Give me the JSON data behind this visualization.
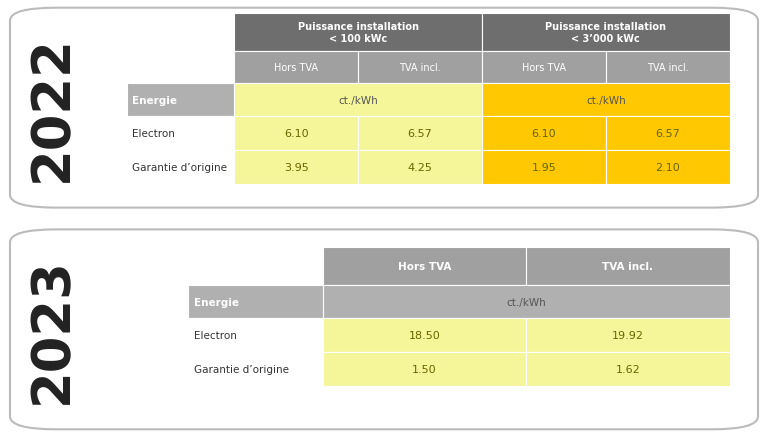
{
  "table2022": {
    "title_year": "2022",
    "col_headers_top": [
      "Puissance installation\n< 100 kWc",
      "Puissance installation\n< 3’000 kWc"
    ],
    "col_headers_sub": [
      "Hors TVA",
      "TVA incl.",
      "Hors TVA",
      "TVA incl."
    ],
    "energie_label_left": "ct./kWh",
    "energie_label_right": "ct./kWh",
    "data": [
      [
        "6.10",
        "6.57",
        "6.10",
        "6.57"
      ],
      [
        "3.95",
        "4.25",
        "1.95",
        "2.10"
      ]
    ],
    "cell_colors": [
      [
        "#f5f59a",
        "#f5f59a",
        "#FFC800",
        "#FFC800"
      ],
      [
        "#f5f59a",
        "#f5f59a",
        "#FFC800",
        "#FFC800"
      ]
    ],
    "energie_color_left": "#f5f59a",
    "energie_color_right": "#FFC800",
    "header_top_color": "#6e6e6e",
    "header_sub_color": "#a0a0a0",
    "row_label_energie_color": "#b0b0b0",
    "row_label_text_color": "#ffffff"
  },
  "table2023": {
    "title_year": "2023",
    "col_headers_sub": [
      "Hors TVA",
      "TVA incl."
    ],
    "energie_label": "ct./kWh",
    "data": [
      [
        "18.50",
        "19.92"
      ],
      [
        "1.50",
        "1.62"
      ]
    ],
    "cell_colors": [
      [
        "#f5f59a",
        "#f5f59a"
      ],
      [
        "#f5f59a",
        "#f5f59a"
      ]
    ],
    "energie_color": "#b0b0b0",
    "header_sub_color": "#a0a0a0",
    "row_label_energie_color": "#b0b0b0"
  },
  "bg_color": "#ffffff",
  "border_color": "#bbbbbb",
  "year_color": "#222222",
  "data_text_color": "#666600",
  "white": "#ffffff",
  "row_label_bg": "white",
  "row_label_text": "#333333"
}
